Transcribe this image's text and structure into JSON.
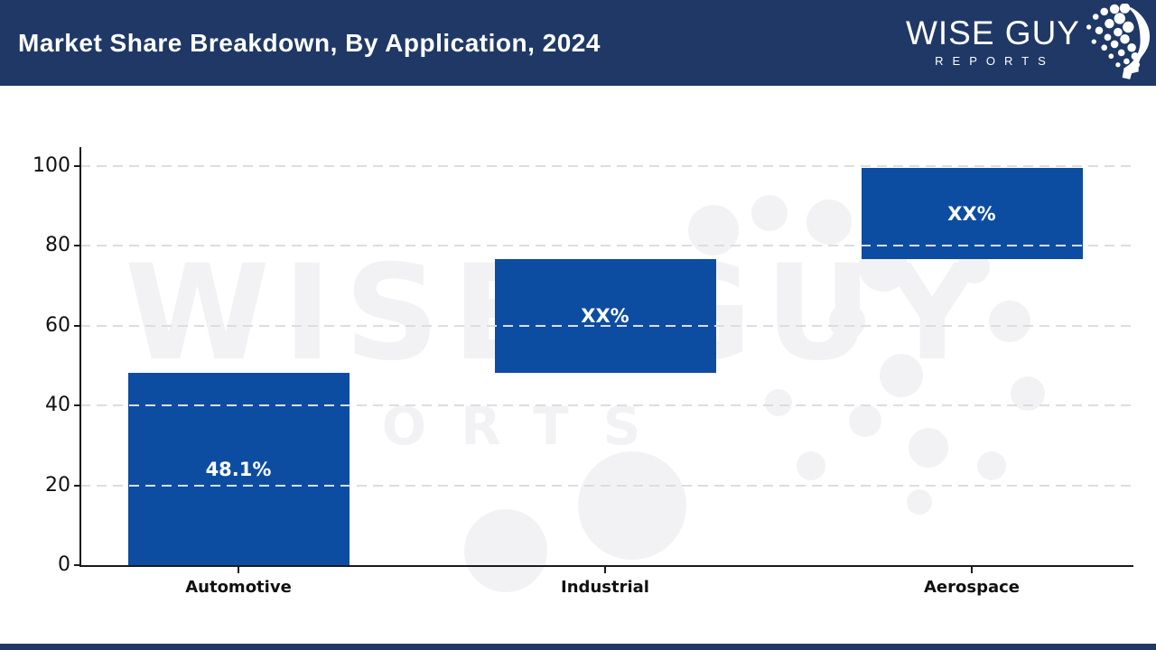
{
  "header": {
    "title": "Market Share Breakdown, By Application, 2024",
    "logo": {
      "line1": "WISE GUY",
      "line2": "REPORTS"
    }
  },
  "watermark": {
    "line1": "WISE GUY",
    "line2": "REPORTS"
  },
  "chart_data": {
    "type": "bar",
    "subtype": "waterfall",
    "title": "Market Share Breakdown, By Application, 2024",
    "xlabel": "",
    "ylabel": "",
    "categories": [
      "Automotive",
      "Industrial",
      "Aerospace"
    ],
    "segments": [
      {
        "category": "Automotive",
        "start": 0,
        "end": 48.1,
        "label": "48.1%"
      },
      {
        "category": "Industrial",
        "start": 48.1,
        "end": 76.6,
        "label": "XX%"
      },
      {
        "category": "Aerospace",
        "start": 76.6,
        "end": 99.6,
        "label": "XX%"
      }
    ],
    "yticks": [
      0,
      20,
      40,
      60,
      80,
      100
    ],
    "ylim": [
      0,
      104.7
    ],
    "grid": "horizontal dashed",
    "legend": "none",
    "bar_color": "#0d4da1",
    "bar_label_color": "#ffffff",
    "axis_color": "#1a1a1a"
  },
  "colors": {
    "header_bg": "#1f3866",
    "footer_bg": "#1f3866",
    "page_bg": "#ffffff",
    "watermark": "#f2f2f4",
    "grid": "#dbdde0"
  }
}
